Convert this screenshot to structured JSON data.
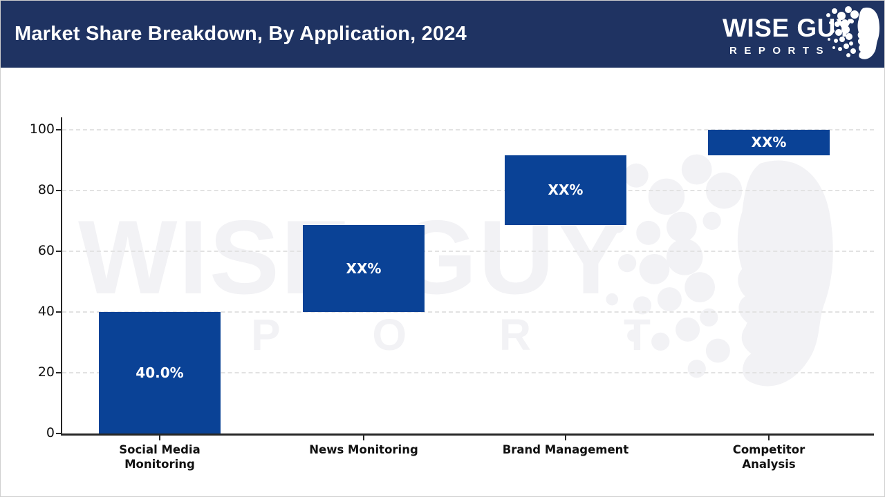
{
  "header": {
    "title": "Market Share Breakdown, By Application, 2024",
    "bg_color": "#1f3362",
    "logo": {
      "line1": "WISE GUY",
      "line2": "REPORTS"
    }
  },
  "watermark": {
    "line1": "WISE GUY",
    "line2": "P O R T S"
  },
  "chart_data": {
    "type": "bar",
    "subtype": "waterfall",
    "title": "Market Share Breakdown, By Application, 2024",
    "xlabel": "",
    "ylabel": "",
    "ylim": [
      0,
      105
    ],
    "yticks": [
      0,
      20,
      40,
      60,
      80,
      100
    ],
    "grid": "horizontal dashed",
    "bar_color": "#0a4296",
    "categories": [
      "Social Media Monitoring",
      "News Monitoring",
      "Brand Management",
      "Competitor Analysis"
    ],
    "category_lines": [
      [
        "Social Media",
        "Monitoring"
      ],
      [
        "News Monitoring"
      ],
      [
        "Brand Management"
      ],
      [
        "Competitor",
        "Analysis"
      ]
    ],
    "segments": [
      {
        "category": "Social Media Monitoring",
        "start": 0,
        "end": 40.0,
        "value": 40.0,
        "label": "40.0%"
      },
      {
        "category": "News Monitoring",
        "start": 40.0,
        "end": 68.6,
        "value": 28.6,
        "label": "XX%"
      },
      {
        "category": "Brand Management",
        "start": 68.6,
        "end": 91.7,
        "value": 23.1,
        "label": "XX%"
      },
      {
        "category": "Competitor Analysis",
        "start": 91.7,
        "end": 100.0,
        "value": 8.3,
        "label": "XX%"
      }
    ]
  }
}
